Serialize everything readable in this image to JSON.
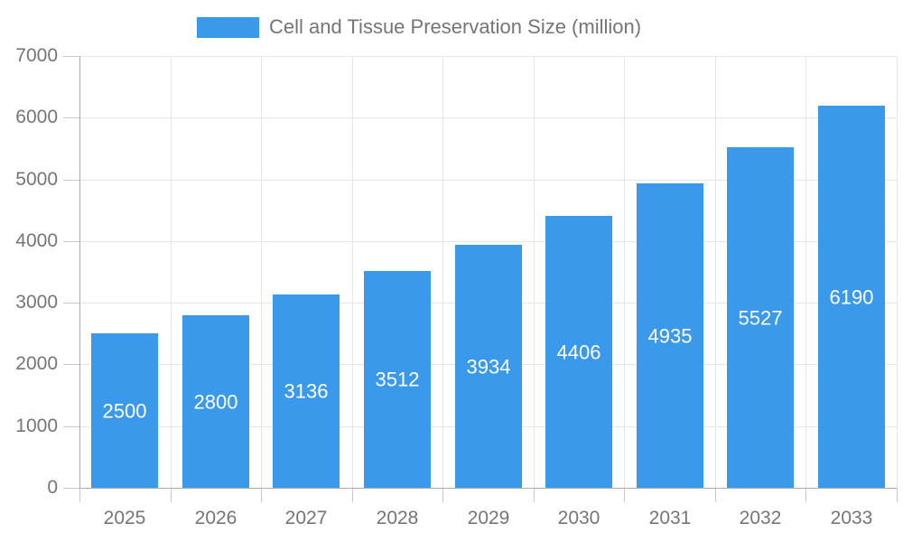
{
  "chart_data": {
    "type": "bar",
    "title": "Cell and Tissue Preservation Size (million)",
    "categories": [
      "2025",
      "2026",
      "2027",
      "2028",
      "2029",
      "2030",
      "2031",
      "2032",
      "2033"
    ],
    "values": [
      2500,
      2800,
      3136,
      3512,
      3934,
      4406,
      4935,
      5527,
      6190
    ],
    "xlabel": "",
    "ylabel": "",
    "ylim": [
      0,
      7000
    ],
    "ytick_step": 1000,
    "grid": true,
    "legend_position": "top-center",
    "value_labels_position": "inside-center",
    "colors": {
      "bar": "#3B99EC",
      "value_label": "#FFFFFF",
      "axis_text": "#757575",
      "gridline": "#E6E6E6",
      "axis_line": "#ABABAB",
      "tick_mark": "#C9C9C9",
      "background": "#FFFFFF"
    }
  }
}
